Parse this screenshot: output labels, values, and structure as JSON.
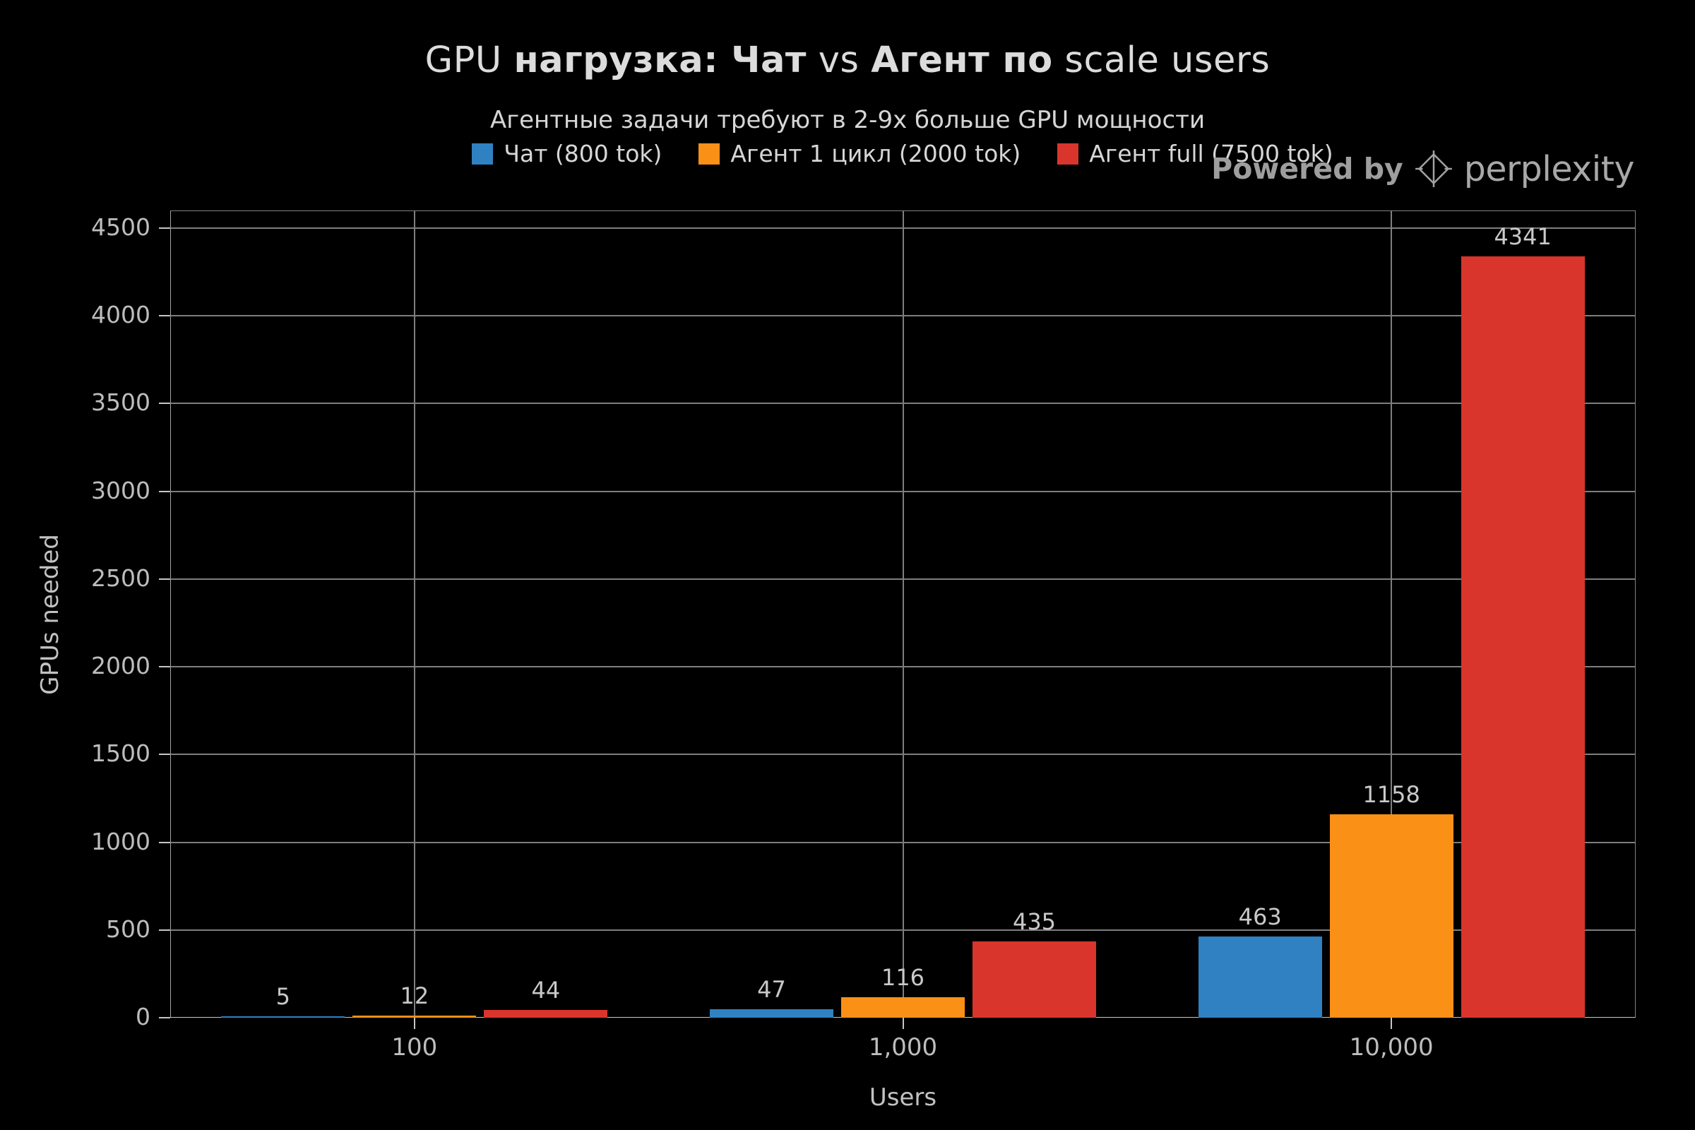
{
  "header": {
    "title": {
      "s1": "GPU ",
      "s2": "нагрузка: Чат",
      "s3": " vs ",
      "s4": "Агент по",
      "s5": " scale users"
    },
    "subtitle": "Агентные задачи требуют в 2-9x больше GPU мощности"
  },
  "branding": {
    "powered_by": "Powered by",
    "brand": "perplexity"
  },
  "chart_data": {
    "type": "bar",
    "title": "GPU нагрузка: Чат vs Агент по scale users",
    "subtitle": "Агентные задачи требуют в 2-9x больше GPU мощности",
    "categories": [
      "100",
      "1,000",
      "10,000"
    ],
    "series": [
      {
        "name": "Чат (800 tok)",
        "color": "#2f81c2",
        "values": [
          5,
          47,
          463
        ]
      },
      {
        "name": "Агент 1 цикл (2000 tok)",
        "color": "#fb9017",
        "values": [
          12,
          116,
          1158
        ]
      },
      {
        "name": "Агент full (7500 tok)",
        "color": "#d9352c",
        "values": [
          44,
          435,
          4341
        ]
      }
    ],
    "xlabel": "Users",
    "ylabel": "GPUs needed",
    "ylim": [
      0,
      4500
    ],
    "yticks": [
      0,
      500,
      1000,
      1500,
      2000,
      2500,
      3000,
      3500,
      4000,
      4500
    ],
    "grid": true,
    "legend_position": "top",
    "background": "#000000",
    "value_label_color": "#c9c9c9"
  }
}
